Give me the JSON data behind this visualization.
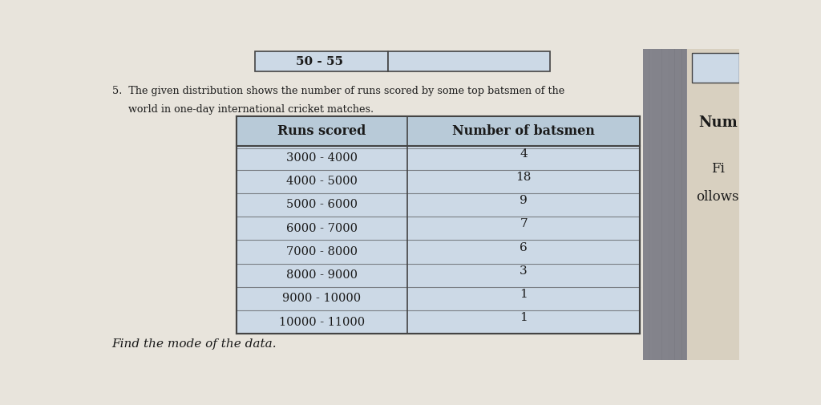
{
  "top_label": "50 - 55",
  "title_line1": "5.  The given distribution shows the number of runs scored by some top batsmen of the",
  "title_line2": "     world in one-day international cricket matches.",
  "col1_header": "Runs scored",
  "col2_header": "Number of batsmen",
  "rows": [
    [
      "3000 - 4000",
      "4"
    ],
    [
      "4000 - 5000",
      "18"
    ],
    [
      "5000 - 6000",
      "9"
    ],
    [
      "6000 - 7000",
      "7"
    ],
    [
      "7000 - 8000",
      "6"
    ],
    [
      "8000 - 9000",
      "3"
    ],
    [
      "9000 - 10000",
      "1"
    ],
    [
      "10000 - 11000",
      "1"
    ]
  ],
  "footer": "Find the mode of the data.",
  "right_text1": "Num",
  "right_text2": "Fi",
  "right_text3": "ollows",
  "page_bg": "#e8e4dc",
  "table_bg": "#ccd9e6",
  "header_bg": "#b8cad8",
  "text_color": "#1a1a1a",
  "border_color": "#444444",
  "spine_color": "#5a5a6a",
  "right_page_bg": "#d8d0c0",
  "right_page_bg2": "#c0b8a8"
}
